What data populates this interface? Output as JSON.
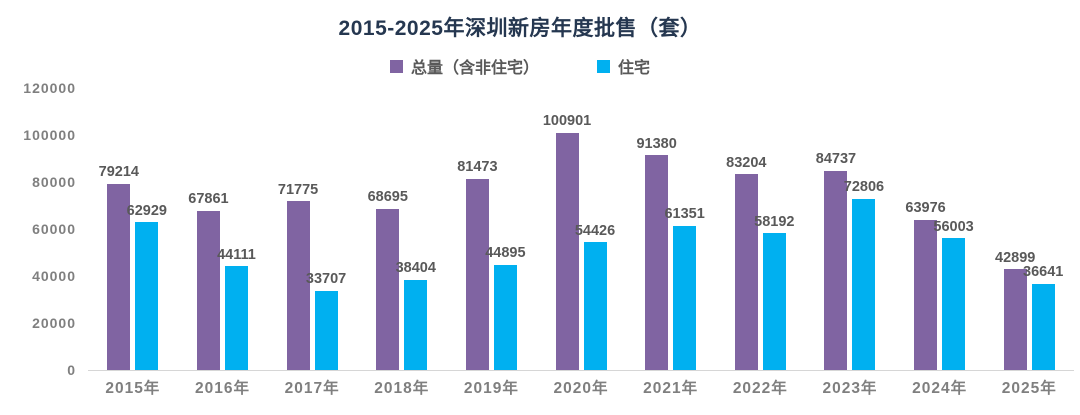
{
  "chart_data": {
    "type": "bar",
    "title": "2015-2025年深圳新房年度批售（套）",
    "categories": [
      "2015年",
      "2016年",
      "2017年",
      "2018年",
      "2019年",
      "2020年",
      "2021年",
      "2022年",
      "2023年",
      "2024年",
      "2025年"
    ],
    "series": [
      {
        "name": "总量（含非住宅）",
        "color": "#8064A2",
        "values": [
          79214,
          67861,
          71775,
          68695,
          81473,
          100901,
          91380,
          83204,
          84737,
          63976,
          42899
        ]
      },
      {
        "name": "住宅",
        "color": "#00B0F0",
        "values": [
          62929,
          44111,
          33707,
          38404,
          44895,
          54426,
          61351,
          58192,
          72806,
          56003,
          36641
        ]
      }
    ],
    "xlabel": "",
    "ylabel": "",
    "ylim": [
      0,
      120000
    ],
    "yticks": [
      0,
      20000,
      40000,
      60000,
      80000,
      100000,
      120000
    ],
    "grid": false,
    "legend_position": "top",
    "data_labels": true
  },
  "colors": {
    "title": "#253750",
    "data_label": "#595959",
    "axis_label": "#7f7f7f",
    "axis_line": "#d6d6d6",
    "background": "#ffffff"
  }
}
